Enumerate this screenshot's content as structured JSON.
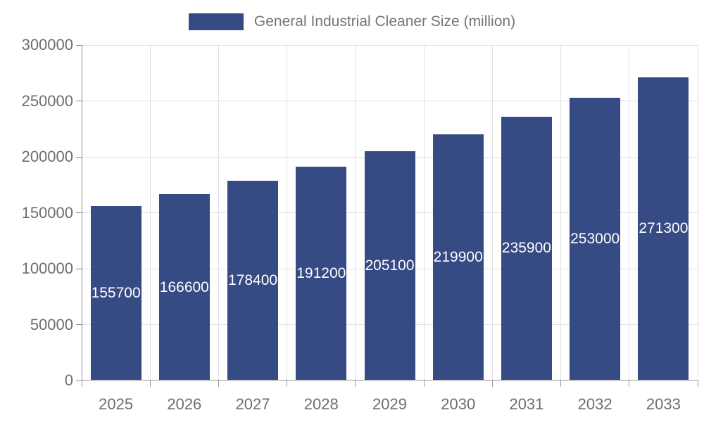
{
  "legend": {
    "label": "General Industrial Cleaner Size (million)"
  },
  "colors": {
    "bar": "#364A84",
    "grid": "#e0e0e0",
    "y_axis_line": "#8c8c8c",
    "x_axis_line": "#9a9a9a",
    "axis_label_text": "#6e6e6e",
    "legend_text": "#757575",
    "value_label_text": "#ffffff",
    "background": "#ffffff"
  },
  "chart_data": {
    "type": "bar",
    "title": "General Industrial Cleaner Size (million)",
    "categories": [
      "2025",
      "2026",
      "2027",
      "2028",
      "2029",
      "2030",
      "2031",
      "2032",
      "2033"
    ],
    "series": [
      {
        "name": "General Industrial Cleaner Size (million)",
        "values": [
          155700,
          166600,
          178400,
          191200,
          205100,
          219900,
          235900,
          253000,
          271300
        ]
      }
    ],
    "values": [
      155700,
      166600,
      178400,
      191200,
      205100,
      219900,
      235900,
      253000,
      271300
    ],
    "value_labels_visible": true,
    "value_label_position": "inside-center",
    "xlabel": "",
    "ylabel": "",
    "ylim": [
      0,
      300000
    ],
    "yticks": [
      0,
      50000,
      100000,
      150000,
      200000,
      250000,
      300000
    ],
    "grid": true,
    "legend_position": "top-center"
  }
}
